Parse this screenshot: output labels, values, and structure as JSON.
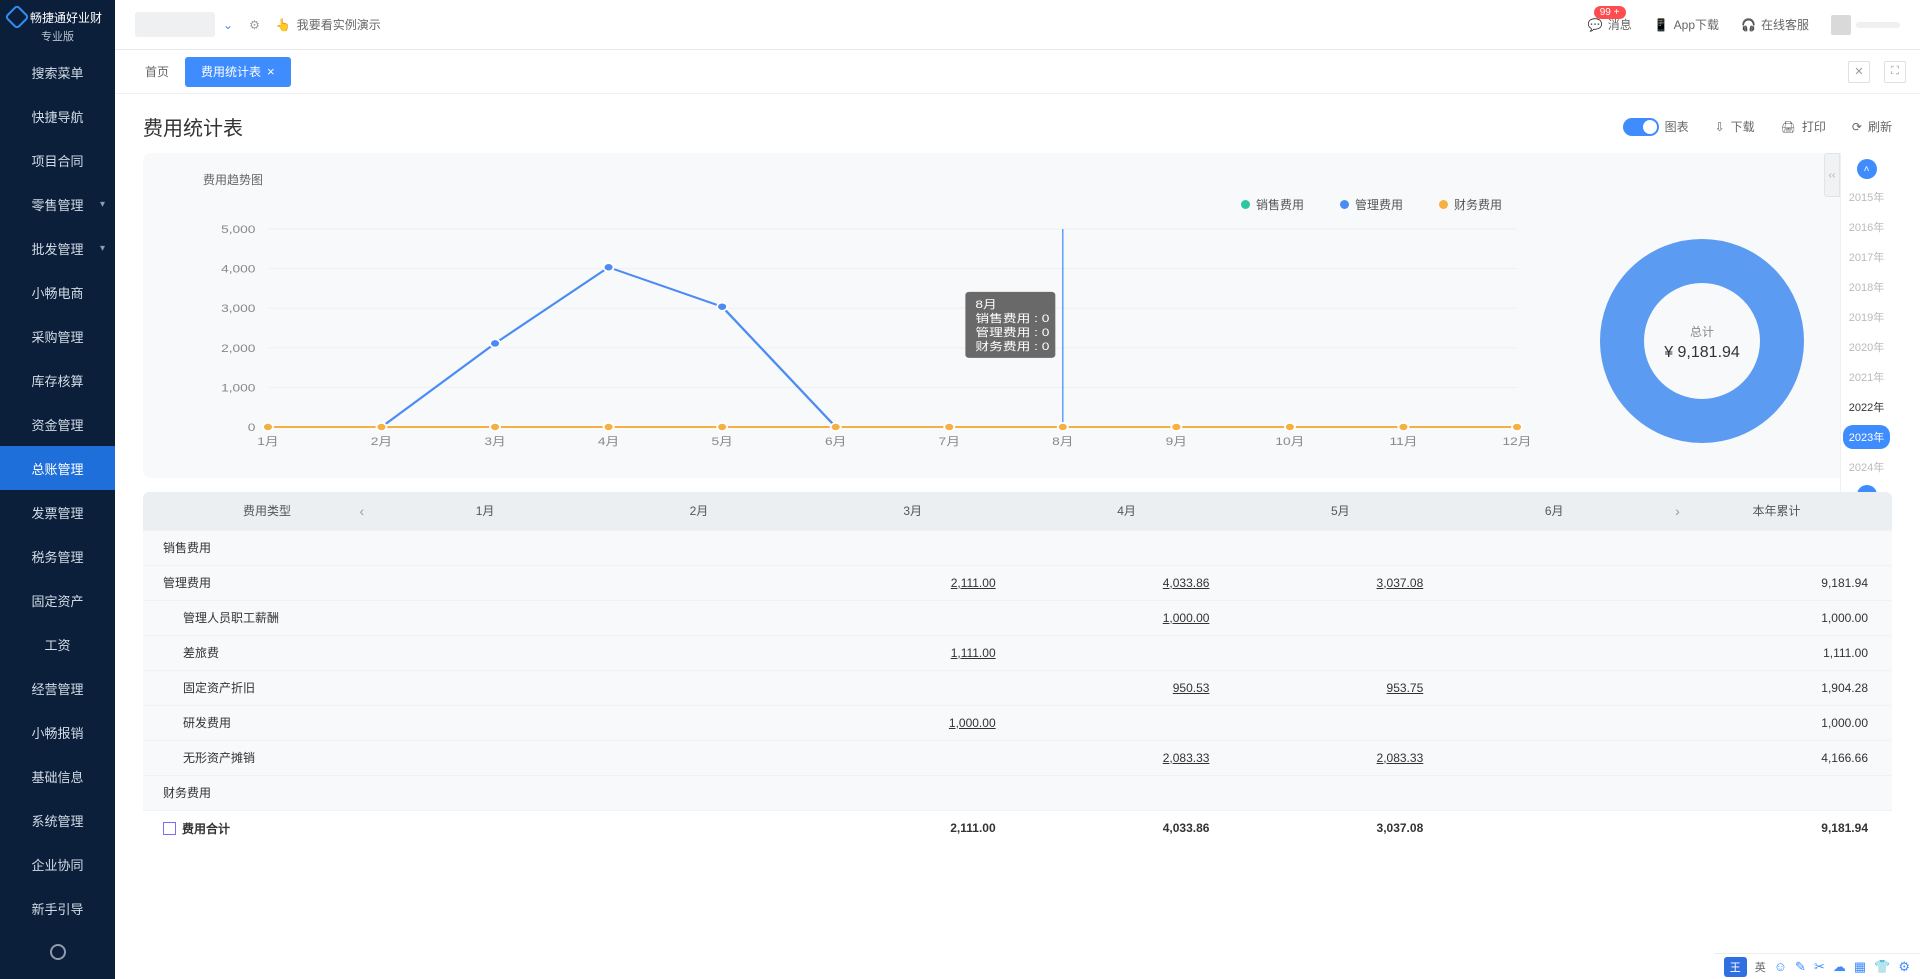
{
  "brand": {
    "name": "畅捷通好业财",
    "edition": "专业版"
  },
  "sidebar": {
    "items": [
      {
        "label": "搜索菜单",
        "expandable": false
      },
      {
        "label": "快捷导航",
        "expandable": false
      },
      {
        "label": "项目合同",
        "expandable": false
      },
      {
        "label": "零售管理",
        "expandable": true
      },
      {
        "label": "批发管理",
        "expandable": true
      },
      {
        "label": "小畅电商",
        "expandable": false
      },
      {
        "label": "采购管理",
        "expandable": false
      },
      {
        "label": "库存核算",
        "expandable": false
      },
      {
        "label": "资金管理",
        "expandable": false
      },
      {
        "label": "总账管理",
        "expandable": false,
        "active": true
      },
      {
        "label": "发票管理",
        "expandable": false
      },
      {
        "label": "税务管理",
        "expandable": false
      },
      {
        "label": "固定资产",
        "expandable": false
      },
      {
        "label": "工资",
        "expandable": false
      },
      {
        "label": "经营管理",
        "expandable": false
      },
      {
        "label": "小畅报销",
        "expandable": false
      },
      {
        "label": "基础信息",
        "expandable": false
      },
      {
        "label": "系统管理",
        "expandable": false
      },
      {
        "label": "企业协同",
        "expandable": false
      },
      {
        "label": "新手引导",
        "expandable": false
      }
    ]
  },
  "header": {
    "demo": "我要看实例演示",
    "messages": "消息",
    "badge": "99 +",
    "download": "App下载",
    "support": "在线客服"
  },
  "tabs": {
    "home": "首页",
    "current": "费用统计表"
  },
  "page": {
    "title": "费用统计表",
    "chart_toggle_label": "图表",
    "download": "下载",
    "print": "打印",
    "refresh": "刷新"
  },
  "chart": {
    "title": "费用趋势图",
    "legend": [
      "销售费用",
      "管理费用",
      "财务费用"
    ],
    "legend_colors": [
      "#2bc7a2",
      "#4b8bf4",
      "#f5b041"
    ],
    "x_labels": [
      "1月",
      "2月",
      "3月",
      "4月",
      "5月",
      "6月",
      "7月",
      "8月",
      "9月",
      "10月",
      "11月",
      "12月"
    ],
    "y_ticks": [
      0,
      1000,
      2000,
      3000,
      4000,
      5000
    ],
    "y_max": 5000,
    "series": {
      "sales": [
        0,
        0,
        0,
        0,
        0,
        0,
        0,
        0,
        0,
        0,
        0,
        0
      ],
      "manage": [
        0,
        0,
        2111,
        4034,
        3037,
        0,
        0,
        0,
        0,
        0,
        0,
        0
      ],
      "finance": [
        0,
        0,
        0,
        0,
        0,
        0,
        0,
        0,
        0,
        0,
        0,
        0
      ]
    },
    "hover_month_index": 7,
    "tooltip": {
      "title": "8月",
      "rows": [
        "销售费用 : 0",
        "管理费用 : 0",
        "财务费用 : 0"
      ]
    },
    "donut": {
      "center_label": "总计",
      "center_value": "¥ 9,181.94",
      "ring_color": "#5b9bf2",
      "track_color": "#e8eef6",
      "fill_ratio": 0.9999
    }
  },
  "years": {
    "list": [
      "2015年",
      "2016年",
      "2017年",
      "2018年",
      "2019年",
      "2020年",
      "2021年",
      "2022年",
      "2023年",
      "2024年"
    ],
    "bold": "2022年",
    "active": "2023年"
  },
  "table": {
    "columns": [
      "费用类型",
      "1月",
      "2月",
      "3月",
      "4月",
      "5月",
      "6月",
      "本年累计"
    ],
    "rows": [
      {
        "label": "销售费用",
        "indent": 0,
        "cells": [
          "",
          "",
          "",
          "",
          "",
          "",
          ""
        ],
        "links": [
          0,
          0,
          0,
          0,
          0,
          0,
          0
        ]
      },
      {
        "label": "管理费用",
        "indent": 0,
        "cells": [
          "",
          "",
          "2,111.00",
          "4,033.86",
          "3,037.08",
          "",
          "9,181.94"
        ],
        "links": [
          0,
          0,
          1,
          1,
          1,
          0,
          0
        ]
      },
      {
        "label": "管理人员职工薪酬",
        "indent": 1,
        "cells": [
          "",
          "",
          "",
          "1,000.00",
          "",
          "",
          "1,000.00"
        ],
        "links": [
          0,
          0,
          0,
          1,
          0,
          0,
          0
        ]
      },
      {
        "label": "差旅费",
        "indent": 1,
        "cells": [
          "",
          "",
          "1,111.00",
          "",
          "",
          "",
          "1,111.00"
        ],
        "links": [
          0,
          0,
          1,
          0,
          0,
          0,
          0
        ]
      },
      {
        "label": "固定资产折旧",
        "indent": 1,
        "cells": [
          "",
          "",
          "",
          "950.53",
          "953.75",
          "",
          "1,904.28"
        ],
        "links": [
          0,
          0,
          0,
          1,
          1,
          0,
          0
        ]
      },
      {
        "label": "研发费用",
        "indent": 1,
        "cells": [
          "",
          "",
          "1,000.00",
          "",
          "",
          "",
          "1,000.00"
        ],
        "links": [
          0,
          0,
          1,
          0,
          0,
          0,
          0
        ]
      },
      {
        "label": "无形资产摊销",
        "indent": 1,
        "cells": [
          "",
          "",
          "",
          "2,083.33",
          "2,083.33",
          "",
          "4,166.66"
        ],
        "links": [
          0,
          0,
          0,
          1,
          1,
          0,
          0
        ]
      },
      {
        "label": "财务费用",
        "indent": 0,
        "cells": [
          "",
          "",
          "",
          "",
          "",
          "",
          ""
        ],
        "links": [
          0,
          0,
          0,
          0,
          0,
          0,
          0
        ]
      }
    ],
    "total": {
      "label": "费用合计",
      "cells": [
        "",
        "",
        "2,111.00",
        "4,033.86",
        "3,037.08",
        "",
        "9,181.94"
      ]
    }
  },
  "taskbar": {
    "ime": "王",
    "lang": "英"
  }
}
